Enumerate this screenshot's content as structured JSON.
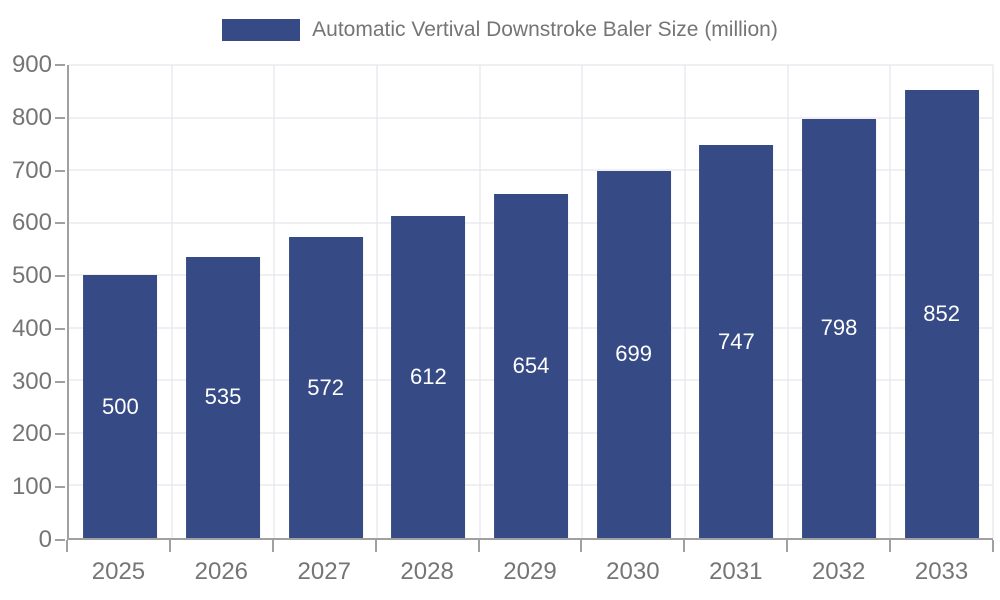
{
  "chart_data": {
    "type": "bar",
    "title": "Automatic Vertival Downstroke Baler Size (million)",
    "categories": [
      "2025",
      "2026",
      "2027",
      "2028",
      "2029",
      "2030",
      "2031",
      "2032",
      "2033"
    ],
    "values": [
      500,
      535,
      572,
      612,
      654,
      699,
      747,
      798,
      852
    ],
    "xlabel": "",
    "ylabel": "",
    "ylim": [
      0,
      900
    ],
    "ytick_step": 100,
    "grid": true,
    "legend_position": "top-center",
    "bar_value_labels_position": "center",
    "colors": {
      "bar": "#364A85",
      "grid": "#E2E2E8",
      "axis": "#A0A0A0",
      "tick_text": "#757575",
      "title_text": "#757575",
      "bar_label": "#FFFFFF"
    }
  }
}
